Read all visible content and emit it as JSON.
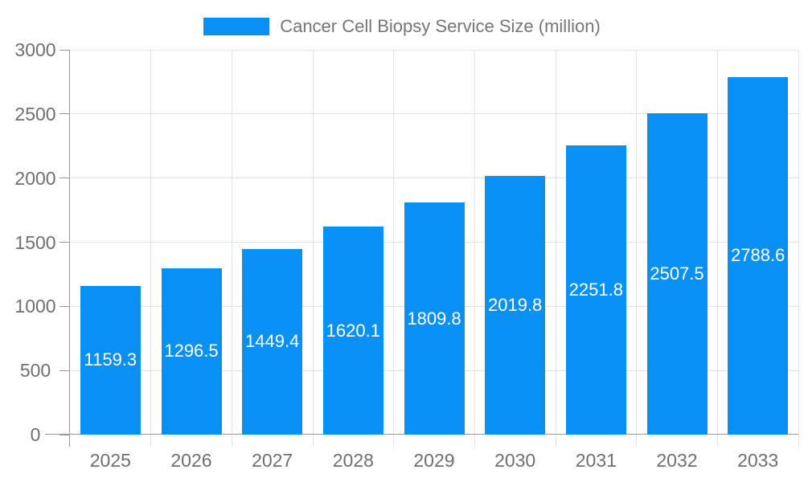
{
  "legend": {
    "label": "Cancer Cell Biopsy Service Size (million)"
  },
  "colors": {
    "bar": "#0990f4",
    "grid": "#e2e2e2",
    "axis": "#999999",
    "tick_label": "#6f6f6f",
    "legend_label": "#757575",
    "value_label": "#ffffff",
    "background": "#ffffff"
  },
  "chart_data": {
    "type": "bar",
    "title": "Cancer Cell Biopsy Service Size (million)",
    "series_name": "Cancer Cell Biopsy Service Size (million)",
    "categories": [
      "2025",
      "2026",
      "2027",
      "2028",
      "2029",
      "2030",
      "2031",
      "2032",
      "2033"
    ],
    "values": [
      1159.3,
      1296.5,
      1449.4,
      1620.1,
      1809.8,
      2019.8,
      2251.8,
      2507.5,
      2788.6
    ],
    "value_labels": [
      "1159.3",
      "1296.5",
      "1449.4",
      "1620.1",
      "1809.8",
      "2019.8",
      "2251.8",
      "2507.5",
      "2788.6"
    ],
    "xlabel": "",
    "ylabel": "",
    "ylim": [
      0,
      3000
    ],
    "yticks": [
      0,
      500,
      1000,
      1500,
      2000,
      2500,
      3000
    ],
    "grid": true,
    "legend_position": "top-center",
    "value_label_position": "inside-center"
  }
}
